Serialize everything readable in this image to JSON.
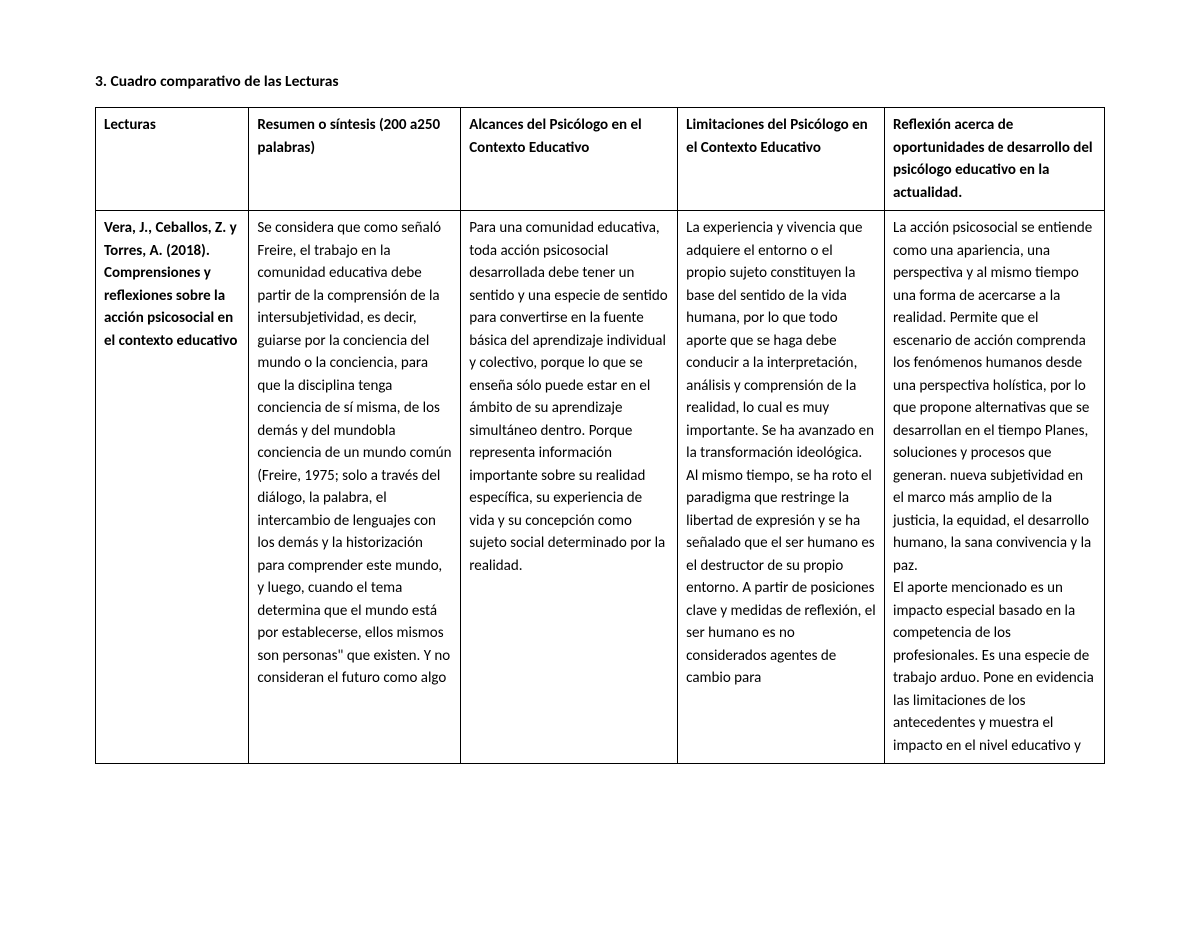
{
  "title": "3. Cuadro comparativo de las Lecturas",
  "table": {
    "header": {
      "c1": "Lecturas",
      "c2": "Resumen o síntesis (200 a250 palabras)",
      "c3": "Alcances del Psicólogo en el Contexto Educativo",
      "c4": "Limitaciones del Psicólogo en el Contexto Educativo",
      "c5": "Reflexión acerca de oportunidades de desarrollo del psicólogo educativo en la actualidad."
    },
    "row1": {
      "c1": "Vera, J., Ceballos, Z. y Torres, A. (2018). Comprensiones y reflexiones sobre la acción psicosocial en el contexto educativo",
      "c2": "Se considera que como señaló Freire, el trabajo en la comunidad educativa debe partir de la comprensión de la intersubjetividad, es decir, guiarse por la conciencia del mundo o la conciencia, para que la disciplina tenga conciencia de sí misma, de los demás y del mundobla conciencia de un mundo común (Freire, 1975; solo a través del diálogo, la palabra, el intercambio de lenguajes con los demás y la historización para comprender este mundo, y luego, cuando el tema determina que el mundo está por establecerse, ellos mismos son personas\" que existen. Y no consideran el futuro como algo",
      "c3": "Para una comunidad educativa, toda acción psicosocial desarrollada debe tener un sentido y una especie de sentido para convertirse en la fuente básica del aprendizaje individual y colectivo, porque lo que se enseña sólo puede estar en el ámbito de su aprendizaje simultáneo dentro. Porque representa información importante sobre su realidad específica, su experiencia de vida y su concepción como sujeto social determinado por la realidad.",
      "c4": "La experiencia y vivencia que adquiere el entorno o el propio sujeto constituyen la base del sentido de la vida humana, por lo que todo aporte que se haga debe conducir a la interpretación, análisis y comprensión de la realidad, lo cual es muy importante. Se ha avanzado en la transformación ideológica. Al mismo tiempo, se ha roto el paradigma que restringe la libertad de expresión y se ha señalado que el ser humano es el destructor de su propio entorno. A partir de posiciones clave y medidas de reflexión, el ser humano es no considerados agentes de cambio para",
      "c5": "La acción psicosocial se entiende como una apariencia, una perspectiva y al mismo tiempo una forma de acercarse a la realidad. Permite que el escenario de acción comprenda los fenómenos humanos desde una perspectiva holística, por lo que propone alternativas que se desarrollan en el tiempo Planes, soluciones y procesos que generan. nueva subjetividad en el marco más amplio de la justicia, la equidad, el desarrollo humano, la sana convivencia y la paz.\nEl aporte mencionado es un impacto especial basado en la competencia de los profesionales. Es una especie de trabajo arduo. Pone en evidencia las limitaciones de los antecedentes y muestra el impacto en el nivel educativo y"
    }
  }
}
